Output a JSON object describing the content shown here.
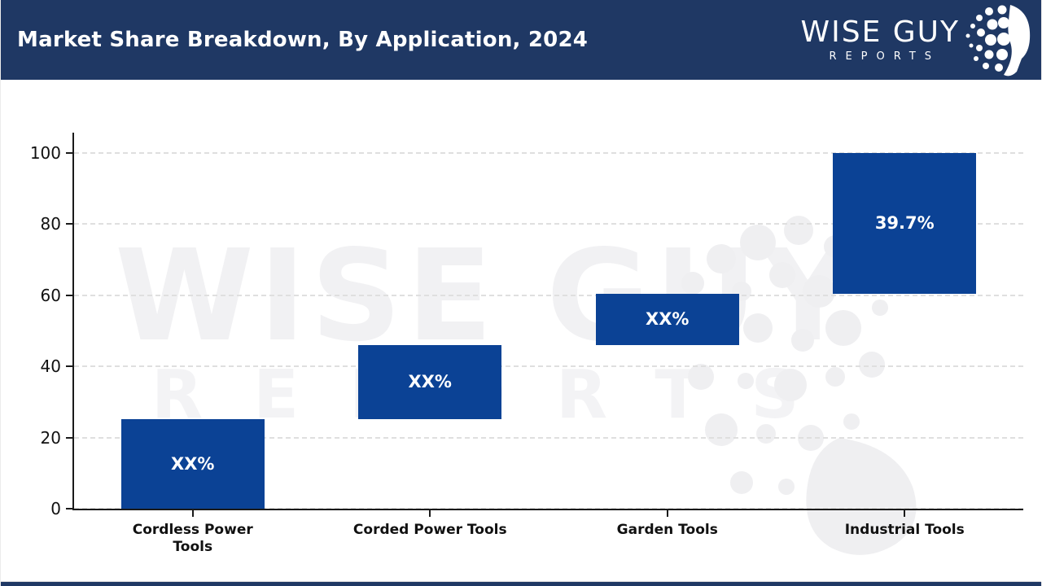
{
  "header": {
    "title": "Market Share Breakdown, By Application, 2024",
    "logo": {
      "wordmark": "WISE GUY",
      "subtext": "REPORTS"
    }
  },
  "watermark": {
    "wordmark": "WISE GUY",
    "subtext": "REPORTS"
  },
  "colors": {
    "header_bg": "#1f3864",
    "footer_bg": "#1f3864",
    "bar": "#0b4295",
    "bar_label": "#ffffff",
    "axis": "#1a1a1a",
    "grid": "#dfdfdf",
    "watermark": "#f1f1f3"
  },
  "chart_data": {
    "type": "bar",
    "subtype": "waterfall-floating-segments",
    "title": "Market Share Breakdown, By Application, 2024",
    "xlabel": "",
    "ylabel": "",
    "categories": [
      "Cordless Power Tools",
      "Corded Power Tools",
      "Garden Tools",
      "Industrial Tools"
    ],
    "segments": [
      {
        "category": "Cordless Power Tools",
        "start": 0,
        "end": 25.2,
        "value": 25.2,
        "label": "XX%"
      },
      {
        "category": "Corded Power Tools",
        "start": 25.2,
        "end": 46.0,
        "value": 20.8,
        "label": "XX%"
      },
      {
        "category": "Garden Tools",
        "start": 46.0,
        "end": 60.3,
        "value": 14.3,
        "label": "XX%"
      },
      {
        "category": "Industrial Tools",
        "start": 60.3,
        "end": 100,
        "value": 39.7,
        "label": "39.7%"
      }
    ],
    "yticks": [
      0,
      20,
      40,
      60,
      80,
      100
    ],
    "ylim": [
      0,
      105.6
    ],
    "grid": "horizontal-dashed",
    "legend": "none",
    "bar_color": "#0b4295"
  }
}
